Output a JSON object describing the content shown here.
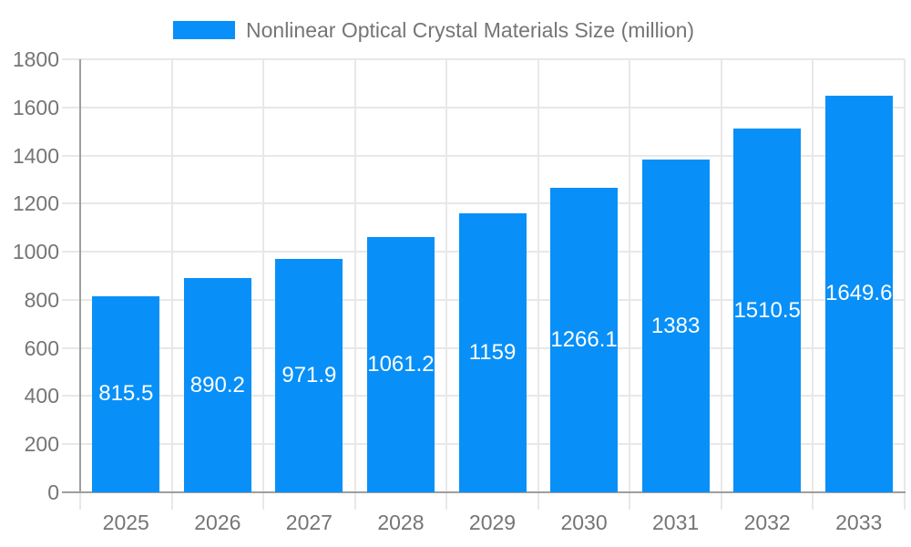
{
  "legend": {
    "label": "Nonlinear Optical Crystal Materials Size (million)"
  },
  "chart_data": {
    "type": "bar",
    "title": "Nonlinear Optical Crystal Materials Size (million)",
    "categories": [
      "2025",
      "2026",
      "2027",
      "2028",
      "2029",
      "2030",
      "2031",
      "2032",
      "2033"
    ],
    "values": [
      815.5,
      890.2,
      971.9,
      1061.2,
      1159,
      1266.1,
      1383,
      1510.5,
      1649.6
    ],
    "value_labels": [
      "815.5",
      "890.2",
      "971.9",
      "1061.2",
      "1159",
      "1266.1",
      "1383",
      "1510.5",
      "1649.6"
    ],
    "xlabel": "",
    "ylabel": "",
    "ylim": [
      0,
      1800
    ],
    "ytick_step": 200,
    "ytick_labels": [
      "0",
      "200",
      "400",
      "600",
      "800",
      "1000",
      "1200",
      "1400",
      "1600",
      "1800"
    ],
    "grid": true,
    "legend_position": "top-center"
  },
  "colors": {
    "bar": "#0890f8",
    "text": "#757575",
    "grid": "#e8e8e8",
    "axis": "#9e9e9e",
    "value_label": "#ffffff",
    "background": "#ffffff"
  }
}
